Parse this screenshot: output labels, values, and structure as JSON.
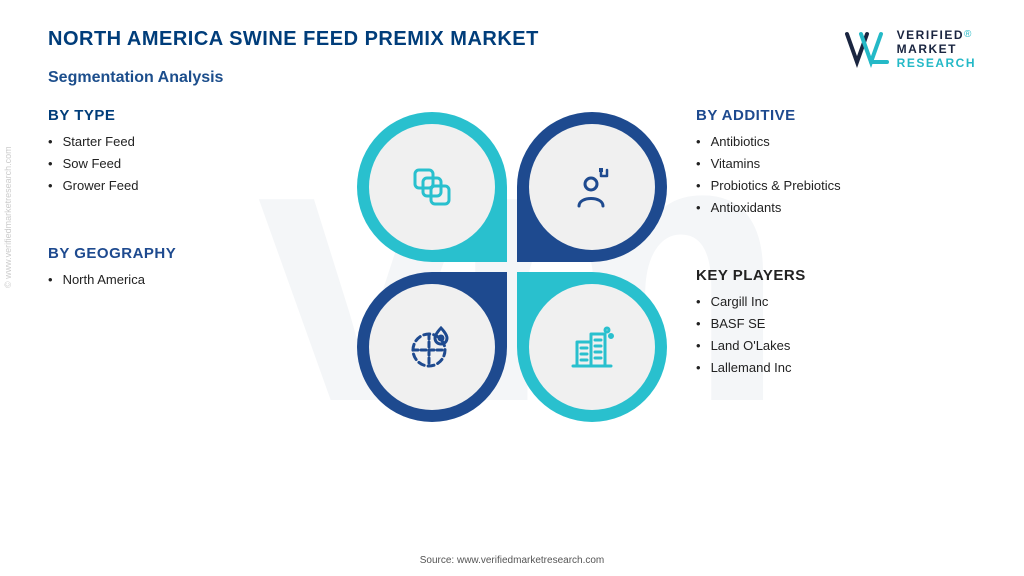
{
  "title": "NORTH AMERICA SWINE FEED PREMIX MARKET",
  "subtitle": "Segmentation Analysis",
  "logo": {
    "line1": "VERIFIED",
    "line2": "MARKET",
    "line3": "RESEARCH",
    "registered": "®"
  },
  "side_watermark": "© www.verifiedmarketresearch.com",
  "source": "Source: www.verifiedmarketresearch.com",
  "colors": {
    "title": "#003d7a",
    "subtitle": "#1c4e8c",
    "petal_teal": "#29c0ce",
    "petal_navy": "#1e4a8f",
    "inner_bg": "#f0f0f0",
    "icon_teal": "#29c0ce",
    "icon_navy": "#1e4a8f",
    "watermark_bg": "#f4f6f8",
    "seg_type": "#003d7a",
    "seg_additive": "#1e4a8f",
    "seg_geo": "#1e4a8f",
    "seg_key": "#222222"
  },
  "segments": {
    "type": {
      "title": "BY TYPE",
      "items": [
        "Starter Feed",
        "Sow Feed",
        "Grower Feed"
      ]
    },
    "additive": {
      "title": "BY ADDITIVE",
      "items": [
        "Antibiotics",
        "Vitamins",
        "Probiotics & Prebiotics",
        "Antioxidants"
      ]
    },
    "geography": {
      "title": "BY GEOGRAPHY",
      "items": [
        "North America"
      ]
    },
    "key_players": {
      "title": "KEY PLAYERS",
      "items": [
        "Cargill  Inc",
        "BASF SE",
        "Land O'Lakes",
        "Lallemand Inc"
      ]
    }
  },
  "petals": {
    "tl": {
      "color": "petal_teal",
      "icon": "squares-icon",
      "icon_color": "icon_teal"
    },
    "tr": {
      "color": "petal_navy",
      "icon": "person-icon",
      "icon_color": "icon_navy"
    },
    "bl": {
      "color": "petal_navy",
      "icon": "globe-pin-icon",
      "icon_color": "icon_navy"
    },
    "br": {
      "color": "petal_teal",
      "icon": "buildings-icon",
      "icon_color": "icon_teal"
    }
  }
}
